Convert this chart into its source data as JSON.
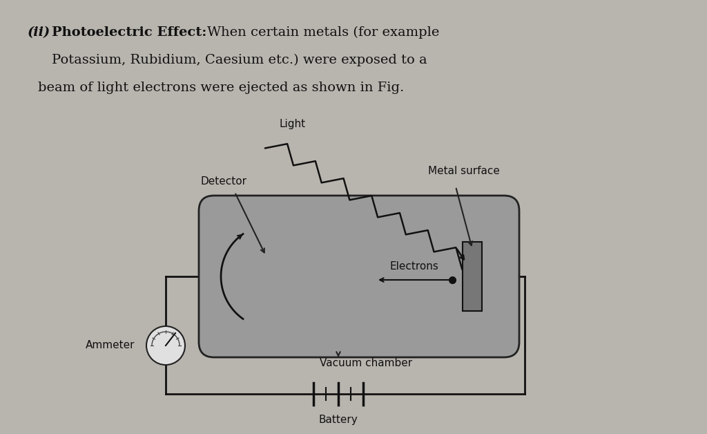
{
  "bg_color": "#b8b4ae",
  "text_color": "#111111",
  "label_light": "Light",
  "label_detector": "Detector",
  "label_metal_surface": "Metal surface",
  "label_electrons": "Electrons",
  "label_ammeter": "Ammeter",
  "label_vacuum": "Vacuum chamber",
  "label_battery": "Battery",
  "chamber_color": "#9a9a9a",
  "chamber_edge": "#222222",
  "circuit_color": "#111111",
  "zigzag_color": "#111111",
  "plate_color": "#777777",
  "ammeter_face": "#e0e0e0"
}
